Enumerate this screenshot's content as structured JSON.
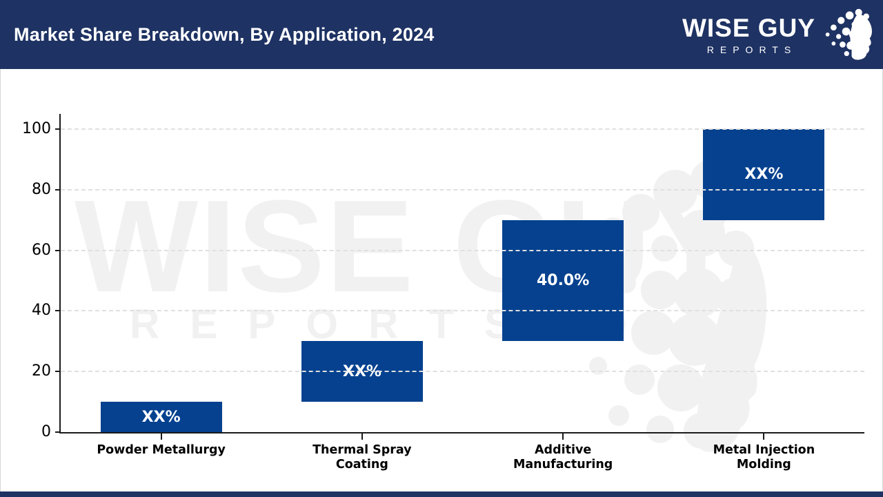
{
  "header": {
    "title": "Market Share Breakdown, By Application, 2024",
    "bg_color": "#1e3263",
    "logo": {
      "line1": "WISE GUY",
      "line2": "REPORTS"
    }
  },
  "watermark": {
    "line1": "WISE GUY",
    "line2": "REPORTS"
  },
  "colors": {
    "header_bg": "#1e3263",
    "footer_bg": "#1e3263",
    "bar": "#05418f",
    "bar_label": "#ffffff",
    "gridline": "#e0e0e0",
    "axis": "#1a1a1a",
    "watermark": "#f1f1f2"
  },
  "chart_data": {
    "type": "bar",
    "subtype": "waterfall",
    "title": "Market Share Breakdown, By Application, 2024",
    "categories": [
      "Powder Metallurgy",
      "Thermal Spray Coating",
      "Additive Manufacturing",
      "Metal Injection Molding"
    ],
    "category_display": [
      "Powder Metallurgy",
      "Thermal Spray\nCoating",
      "Additive\nManufacturing",
      "Metal Injection\nMolding"
    ],
    "segments": [
      {
        "category": "Powder Metallurgy",
        "start": 0,
        "end": 10,
        "value": 10,
        "label": "XX%"
      },
      {
        "category": "Thermal Spray Coating",
        "start": 10,
        "end": 30,
        "value": 20,
        "label": "XX%"
      },
      {
        "category": "Additive Manufacturing",
        "start": 30,
        "end": 70,
        "value": 40,
        "label": "40.0%"
      },
      {
        "category": "Metal Injection Molding",
        "start": 70,
        "end": 100,
        "value": 30,
        "label": "XX%"
      }
    ],
    "yticks": [
      0,
      20,
      40,
      60,
      80,
      100
    ],
    "ylim": [
      0,
      105
    ],
    "xlabel": "",
    "ylabel": "",
    "legend": "none",
    "grid": "horizontal-dashed"
  }
}
